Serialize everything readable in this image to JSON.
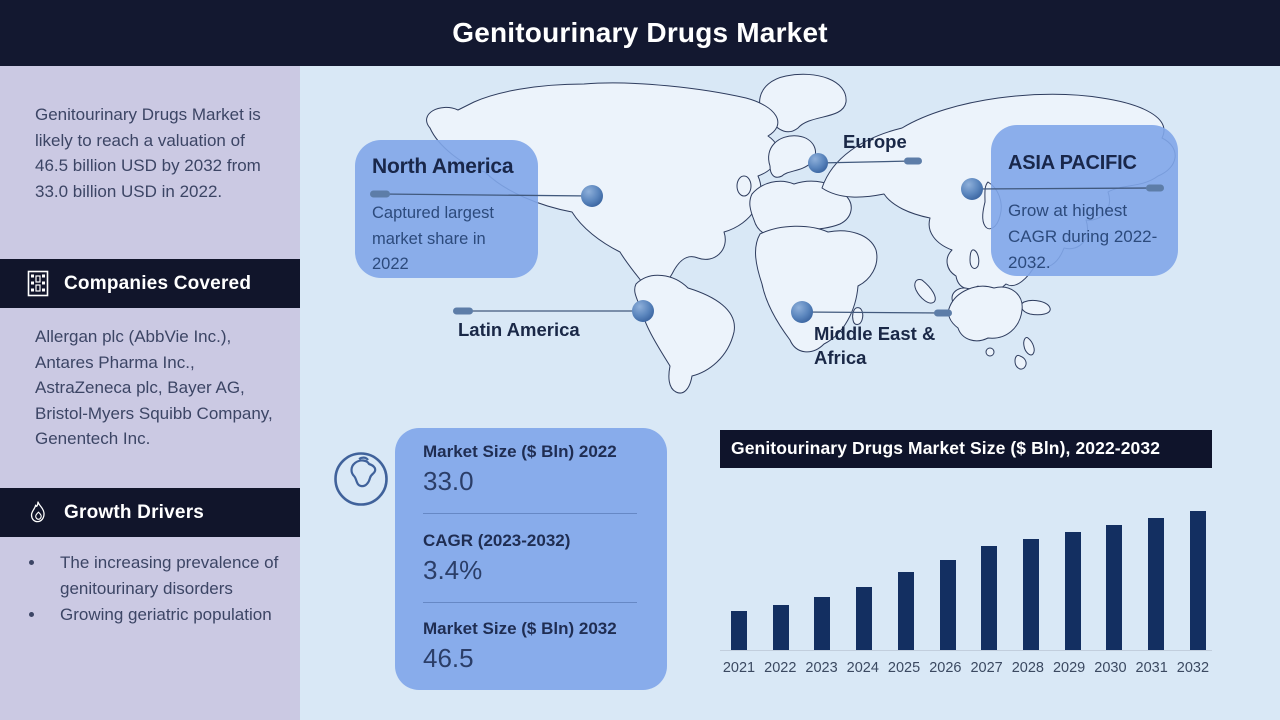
{
  "header": {
    "title": "Genitourinary Drugs Market"
  },
  "sidebar": {
    "intro": "Genitourinary Drugs Market is likely to reach a valuation of 46.5 billion USD by 2032 from 33.0 billion USD in 2022.",
    "companies_header": "Companies Covered",
    "companies": "Allergan plc (AbbVie Inc.), Antares Pharma Inc., AstraZeneca plc, Bayer AG, Bristol-Myers Squibb Company, Genentech Inc.",
    "growth_header": "Growth Drivers",
    "growth_drivers": [
      "The increasing prevalence of genitourinary disorders",
      "Growing geriatric population"
    ]
  },
  "map": {
    "regions": [
      {
        "id": "north-america",
        "label": "North America",
        "note": "Captured largest market share in 2022"
      },
      {
        "id": "europe",
        "label": "Europe",
        "note": ""
      },
      {
        "id": "asia-pacific",
        "label": "ASIA PACIFIC",
        "note": "Grow at highest CAGR during 2022-2032."
      },
      {
        "id": "latin-america",
        "label": "Latin America",
        "note": ""
      },
      {
        "id": "middle-east-africa",
        "label": "Middle East & Africa",
        "note": ""
      }
    ]
  },
  "stats": {
    "rows": [
      {
        "label": "Market Size ($ Bln) 2022",
        "value": "33.0"
      },
      {
        "label": "CAGR (2023-2032)",
        "value": "3.4%"
      },
      {
        "label": "Market Size ($ Bln) 2032",
        "value": "46.5"
      }
    ]
  },
  "chart_data": {
    "type": "bar",
    "title": "Genitourinary Drugs Market Size ($ Bln), 2022-2032",
    "categories": [
      "2021",
      "2022",
      "2023",
      "2024",
      "2025",
      "2026",
      "2027",
      "2028",
      "2029",
      "2030",
      "2031",
      "2032"
    ],
    "values": [
      32.1,
      33.0,
      34.2,
      35.6,
      37.7,
      39.4,
      41.4,
      42.5,
      43.5,
      44.5,
      45.5,
      46.5
    ],
    "xlabel": "",
    "ylabel": "",
    "ylim": [
      26.6,
      47.6
    ],
    "grid": false,
    "legend": false,
    "bar_color": "#132f61"
  },
  "colors": {
    "header_bg": "#131830",
    "sidebar_bg": "#cbc9e3",
    "band_bg": "#11152b",
    "main_bg": "#d9e8f6",
    "callout_bg": "#81a6e9",
    "land_fill": "#ecf3fb",
    "land_stroke": "#2e3c5e",
    "bar": "#132f61"
  }
}
